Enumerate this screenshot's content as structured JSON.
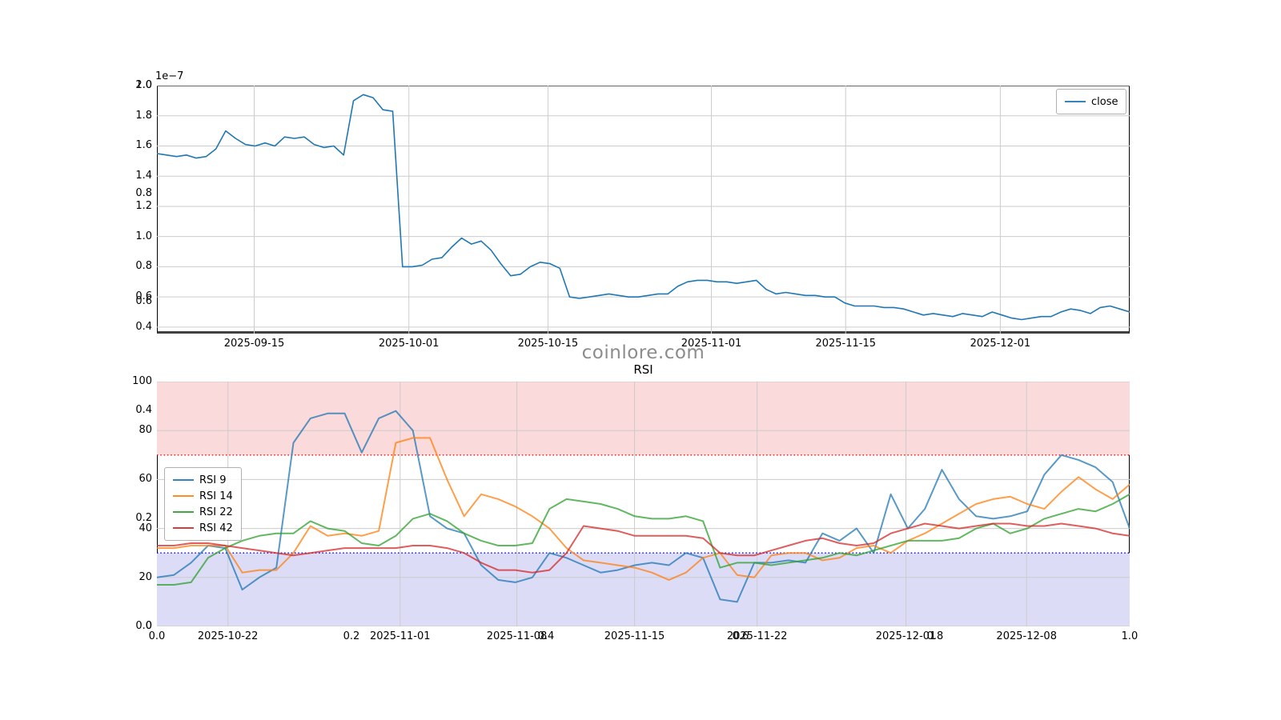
{
  "watermark": "coinlore.com",
  "colors": {
    "grid": "#cccccc",
    "spine": "#000000",
    "watermark": "#8c8c8c"
  },
  "overlay_axis": {
    "yticks": [
      "1.0",
      "0.8",
      "0.6",
      "0.4",
      "0.2",
      "0.0"
    ],
    "xticks": [
      "0.0",
      "0.2",
      "0.4",
      "0.6",
      "0.8",
      "1.0"
    ]
  },
  "chart_data": [
    {
      "type": "line",
      "title": "",
      "offset_label": "1e−7",
      "legend_position": "upper right",
      "grid": true,
      "ylim": [
        0.357,
        2.0
      ],
      "yticks": [
        {
          "v": 2.0,
          "label": "2.0"
        },
        {
          "v": 1.8,
          "label": "1.8"
        },
        {
          "v": 1.6,
          "label": "1.6"
        },
        {
          "v": 1.4,
          "label": "1.4"
        },
        {
          "v": 1.2,
          "label": "1.2"
        },
        {
          "v": 1.0,
          "label": "1.0"
        },
        {
          "v": 0.8,
          "label": "0.8"
        },
        {
          "v": 0.6,
          "label": "0.6"
        },
        {
          "v": 0.4,
          "label": "0.4"
        }
      ],
      "xticks": [
        {
          "f": 0.1,
          "label": "2025-09-15"
        },
        {
          "f": 0.259,
          "label": "2025-10-01"
        },
        {
          "f": 0.402,
          "label": "2025-10-15"
        },
        {
          "f": 0.57,
          "label": "2025-11-01"
        },
        {
          "f": 0.708,
          "label": "2025-11-15"
        },
        {
          "f": 0.867,
          "label": "2025-12-01"
        }
      ],
      "series": [
        {
          "name": "close",
          "color": "#1f77b4",
          "unit_scale": "1e-7",
          "values": [
            1.55,
            1.54,
            1.53,
            1.54,
            1.52,
            1.53,
            1.58,
            1.7,
            1.65,
            1.61,
            1.6,
            1.62,
            1.6,
            1.66,
            1.65,
            1.66,
            1.61,
            1.59,
            1.6,
            1.54,
            1.9,
            1.94,
            1.92,
            1.84,
            1.83,
            0.8,
            0.8,
            0.81,
            0.85,
            0.86,
            0.93,
            0.99,
            0.95,
            0.97,
            0.91,
            0.82,
            0.74,
            0.75,
            0.8,
            0.83,
            0.82,
            0.79,
            0.6,
            0.59,
            0.6,
            0.61,
            0.62,
            0.61,
            0.6,
            0.6,
            0.61,
            0.62,
            0.62,
            0.67,
            0.7,
            0.71,
            0.71,
            0.7,
            0.7,
            0.69,
            0.7,
            0.71,
            0.65,
            0.62,
            0.63,
            0.62,
            0.61,
            0.61,
            0.6,
            0.6,
            0.56,
            0.54,
            0.54,
            0.54,
            0.53,
            0.53,
            0.52,
            0.5,
            0.48,
            0.49,
            0.48,
            0.47,
            0.49,
            0.48,
            0.47,
            0.5,
            0.48,
            0.46,
            0.45,
            0.46,
            0.47,
            0.47,
            0.5,
            0.52,
            0.51,
            0.49,
            0.53,
            0.54,
            0.52,
            0.5
          ]
        }
      ]
    },
    {
      "type": "line",
      "title": "RSI",
      "legend_position": "center left",
      "grid": true,
      "ylim": [
        0,
        100
      ],
      "yticks": [
        {
          "v": 100,
          "label": "100"
        },
        {
          "v": 80,
          "label": "80"
        },
        {
          "v": 60,
          "label": "60"
        },
        {
          "v": 40,
          "label": "40"
        },
        {
          "v": 20,
          "label": "20"
        },
        {
          "v": 0,
          "label": "0"
        }
      ],
      "xticks": [
        {
          "f": 0.073,
          "label": "2025-10-22"
        },
        {
          "f": 0.25,
          "label": "2025-11-01"
        },
        {
          "f": 0.37,
          "label": "2025-11-08"
        },
        {
          "f": 0.491,
          "label": "2025-11-15"
        },
        {
          "f": 0.617,
          "label": "2025-11-22"
        },
        {
          "f": 0.77,
          "label": "2025-12-01"
        },
        {
          "f": 0.894,
          "label": "2025-12-08"
        }
      ],
      "bands": [
        {
          "from": 70,
          "to": 100,
          "color": "#fadada",
          "meaning": "overbought"
        },
        {
          "from": 0,
          "to": 30,
          "color": "#dcdcf6",
          "meaning": "oversold"
        }
      ],
      "hlines": [
        {
          "y": 70,
          "color": "#ff0000",
          "style": "dotted"
        },
        {
          "y": 30,
          "color": "#0000cd",
          "style": "dotted"
        }
      ],
      "series": [
        {
          "name": "RSI 9",
          "color": "#1f77b4",
          "values": [
            20,
            21,
            26,
            33,
            32,
            15,
            20,
            24,
            75,
            85,
            87,
            87,
            71,
            85,
            88,
            80,
            45,
            40,
            38,
            25,
            19,
            18,
            20,
            30,
            28,
            25,
            22,
            23,
            25,
            26,
            25,
            30,
            28,
            11,
            10,
            26,
            26,
            27,
            26,
            38,
            35,
            40,
            30,
            54,
            40,
            48,
            64,
            52,
            45,
            44,
            45,
            47,
            62,
            70,
            68,
            65,
            59,
            40
          ]
        },
        {
          "name": "RSI 14",
          "color": "#ff7f0e",
          "values": [
            32,
            32,
            33,
            33,
            33,
            22,
            23,
            23,
            30,
            41,
            37,
            38,
            37,
            39,
            75,
            77,
            77,
            60,
            45,
            54,
            52,
            49,
            45,
            40,
            32,
            27,
            26,
            25,
            24,
            22,
            19,
            22,
            28,
            30,
            21,
            20,
            29,
            30,
            30,
            27,
            28,
            32,
            33,
            30,
            35,
            38,
            42,
            46,
            50,
            52,
            53,
            50,
            48,
            55,
            61,
            56,
            52,
            58
          ]
        },
        {
          "name": "RSI 22",
          "color": "#2ca02c",
          "values": [
            17,
            17,
            18,
            28,
            32,
            35,
            37,
            38,
            38,
            43,
            40,
            39,
            34,
            33,
            37,
            44,
            46,
            43,
            38,
            35,
            33,
            33,
            34,
            48,
            52,
            51,
            50,
            48,
            45,
            44,
            44,
            45,
            43,
            24,
            26,
            26,
            25,
            26,
            27,
            28,
            30,
            29,
            31,
            33,
            35,
            35,
            35,
            36,
            40,
            42,
            38,
            40,
            44,
            46,
            48,
            47,
            50,
            54
          ]
        },
        {
          "name": "RSI 42",
          "color": "#d62728",
          "values": [
            33,
            33,
            34,
            34,
            33,
            32,
            31,
            30,
            29,
            30,
            31,
            32,
            32,
            32,
            32,
            33,
            33,
            32,
            30,
            26,
            23,
            23,
            22,
            23,
            30,
            41,
            40,
            39,
            37,
            37,
            37,
            37,
            36,
            30,
            29,
            29,
            31,
            33,
            35,
            36,
            34,
            33,
            34,
            38,
            40,
            42,
            41,
            40,
            41,
            42,
            42,
            41,
            41,
            42,
            41,
            40,
            38,
            37
          ]
        }
      ]
    }
  ]
}
